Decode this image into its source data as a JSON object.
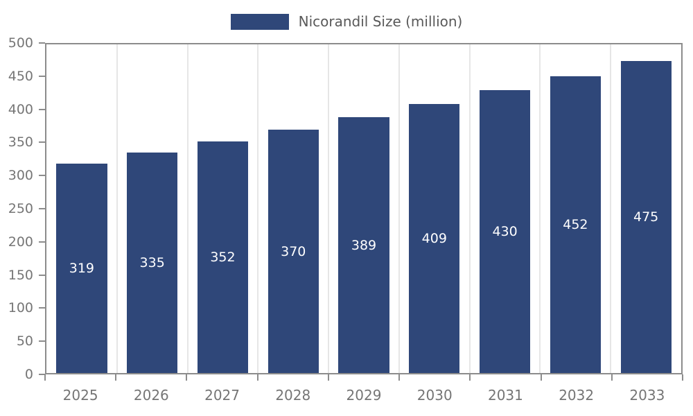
{
  "chart_data": {
    "type": "bar",
    "title": "Nicorandil Size (million)",
    "categories": [
      "2025",
      "2026",
      "2027",
      "2028",
      "2029",
      "2030",
      "2031",
      "2032",
      "2033"
    ],
    "values": [
      319,
      335,
      352,
      370,
      389,
      409,
      430,
      452,
      475
    ],
    "series": [
      {
        "name": "Nicorandil Size (million)",
        "values": [
          319,
          335,
          352,
          370,
          389,
          409,
          430,
          452,
          475
        ]
      }
    ],
    "xlabel": "",
    "ylabel": "",
    "ylim": [
      0,
      500
    ],
    "yticks": [
      0,
      50,
      100,
      150,
      200,
      250,
      300,
      350,
      400,
      450,
      500
    ],
    "legend_position": "top",
    "grid": "vertical-only",
    "value_labels": "inside-center",
    "colors": {
      "bar": "#2f4779",
      "bar_label": "#ffffff",
      "axis": "#8c8c8c",
      "gridline": "#cccccc",
      "tick_label": "#757575",
      "legend_text": "#595959",
      "background": "#ffffff"
    }
  }
}
